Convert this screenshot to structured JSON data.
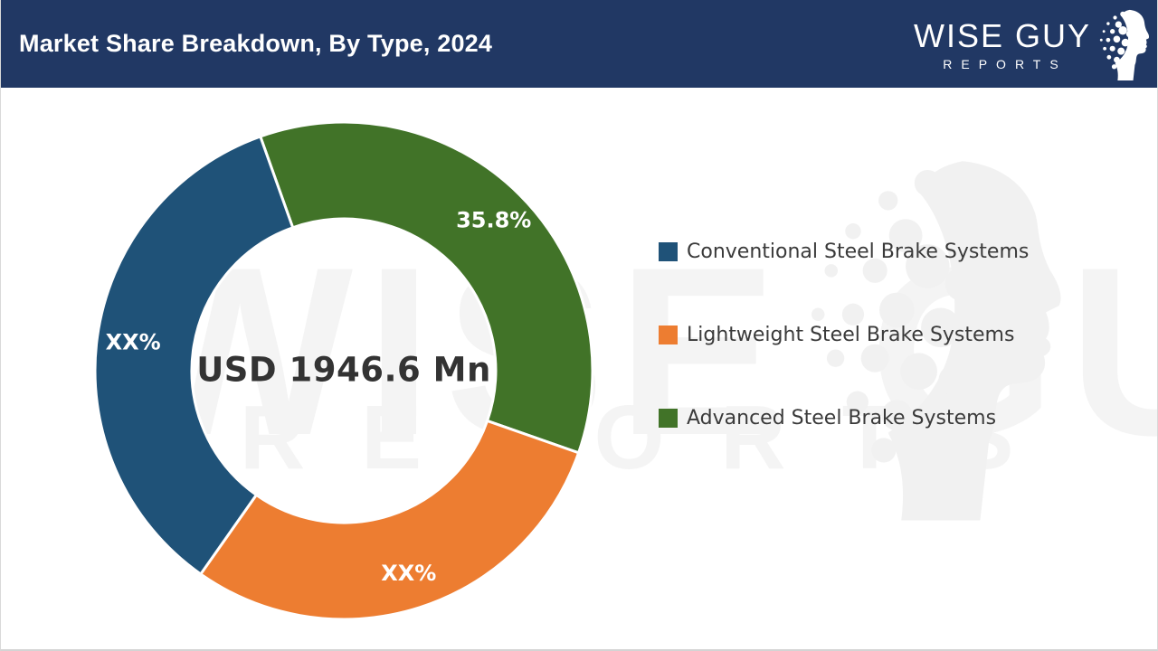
{
  "header": {
    "title": "Market Share Breakdown, By Type, 2024",
    "brand": {
      "line1": "WISE GUY",
      "line2": "REPORTS"
    }
  },
  "watermark": {
    "line1": "WISE GUY",
    "line2": "REPORTS"
  },
  "chart_data": {
    "type": "donut",
    "title": "Market Share Breakdown, By Type, 2024",
    "center_label": "USD 1946.6 Mn",
    "start_angle_deg": -19.6,
    "outer_radius": 275,
    "inner_radius": 168,
    "label_radius": 235,
    "slices": [
      {
        "id": "advanced-steel-brake-systems",
        "name": "Advanced Steel Brake Systems",
        "value": 35.8,
        "display": "35.8%",
        "color": "#417328"
      },
      {
        "id": "lightweight-steel-brake-systems",
        "name": "Lightweight Steel Brake Systems",
        "value": 29.4,
        "display": "XX%",
        "color": "#ED7D31"
      },
      {
        "id": "conventional-steel-brake-systems",
        "name": "Conventional Steel Brake Systems",
        "value": 34.8,
        "display": "XX%",
        "color": "#1F5278"
      }
    ],
    "legend": [
      {
        "label": "Conventional Steel Brake Systems",
        "color": "#1F5278"
      },
      {
        "label": "Lightweight Steel Brake Systems",
        "color": "#ED7D31"
      },
      {
        "label": "Advanced Steel Brake Systems",
        "color": "#417328"
      }
    ],
    "legend_position": "right",
    "colors": {
      "header_bg": "#213864",
      "center_text": "#333333",
      "slice_divider": "#ffffff"
    }
  }
}
